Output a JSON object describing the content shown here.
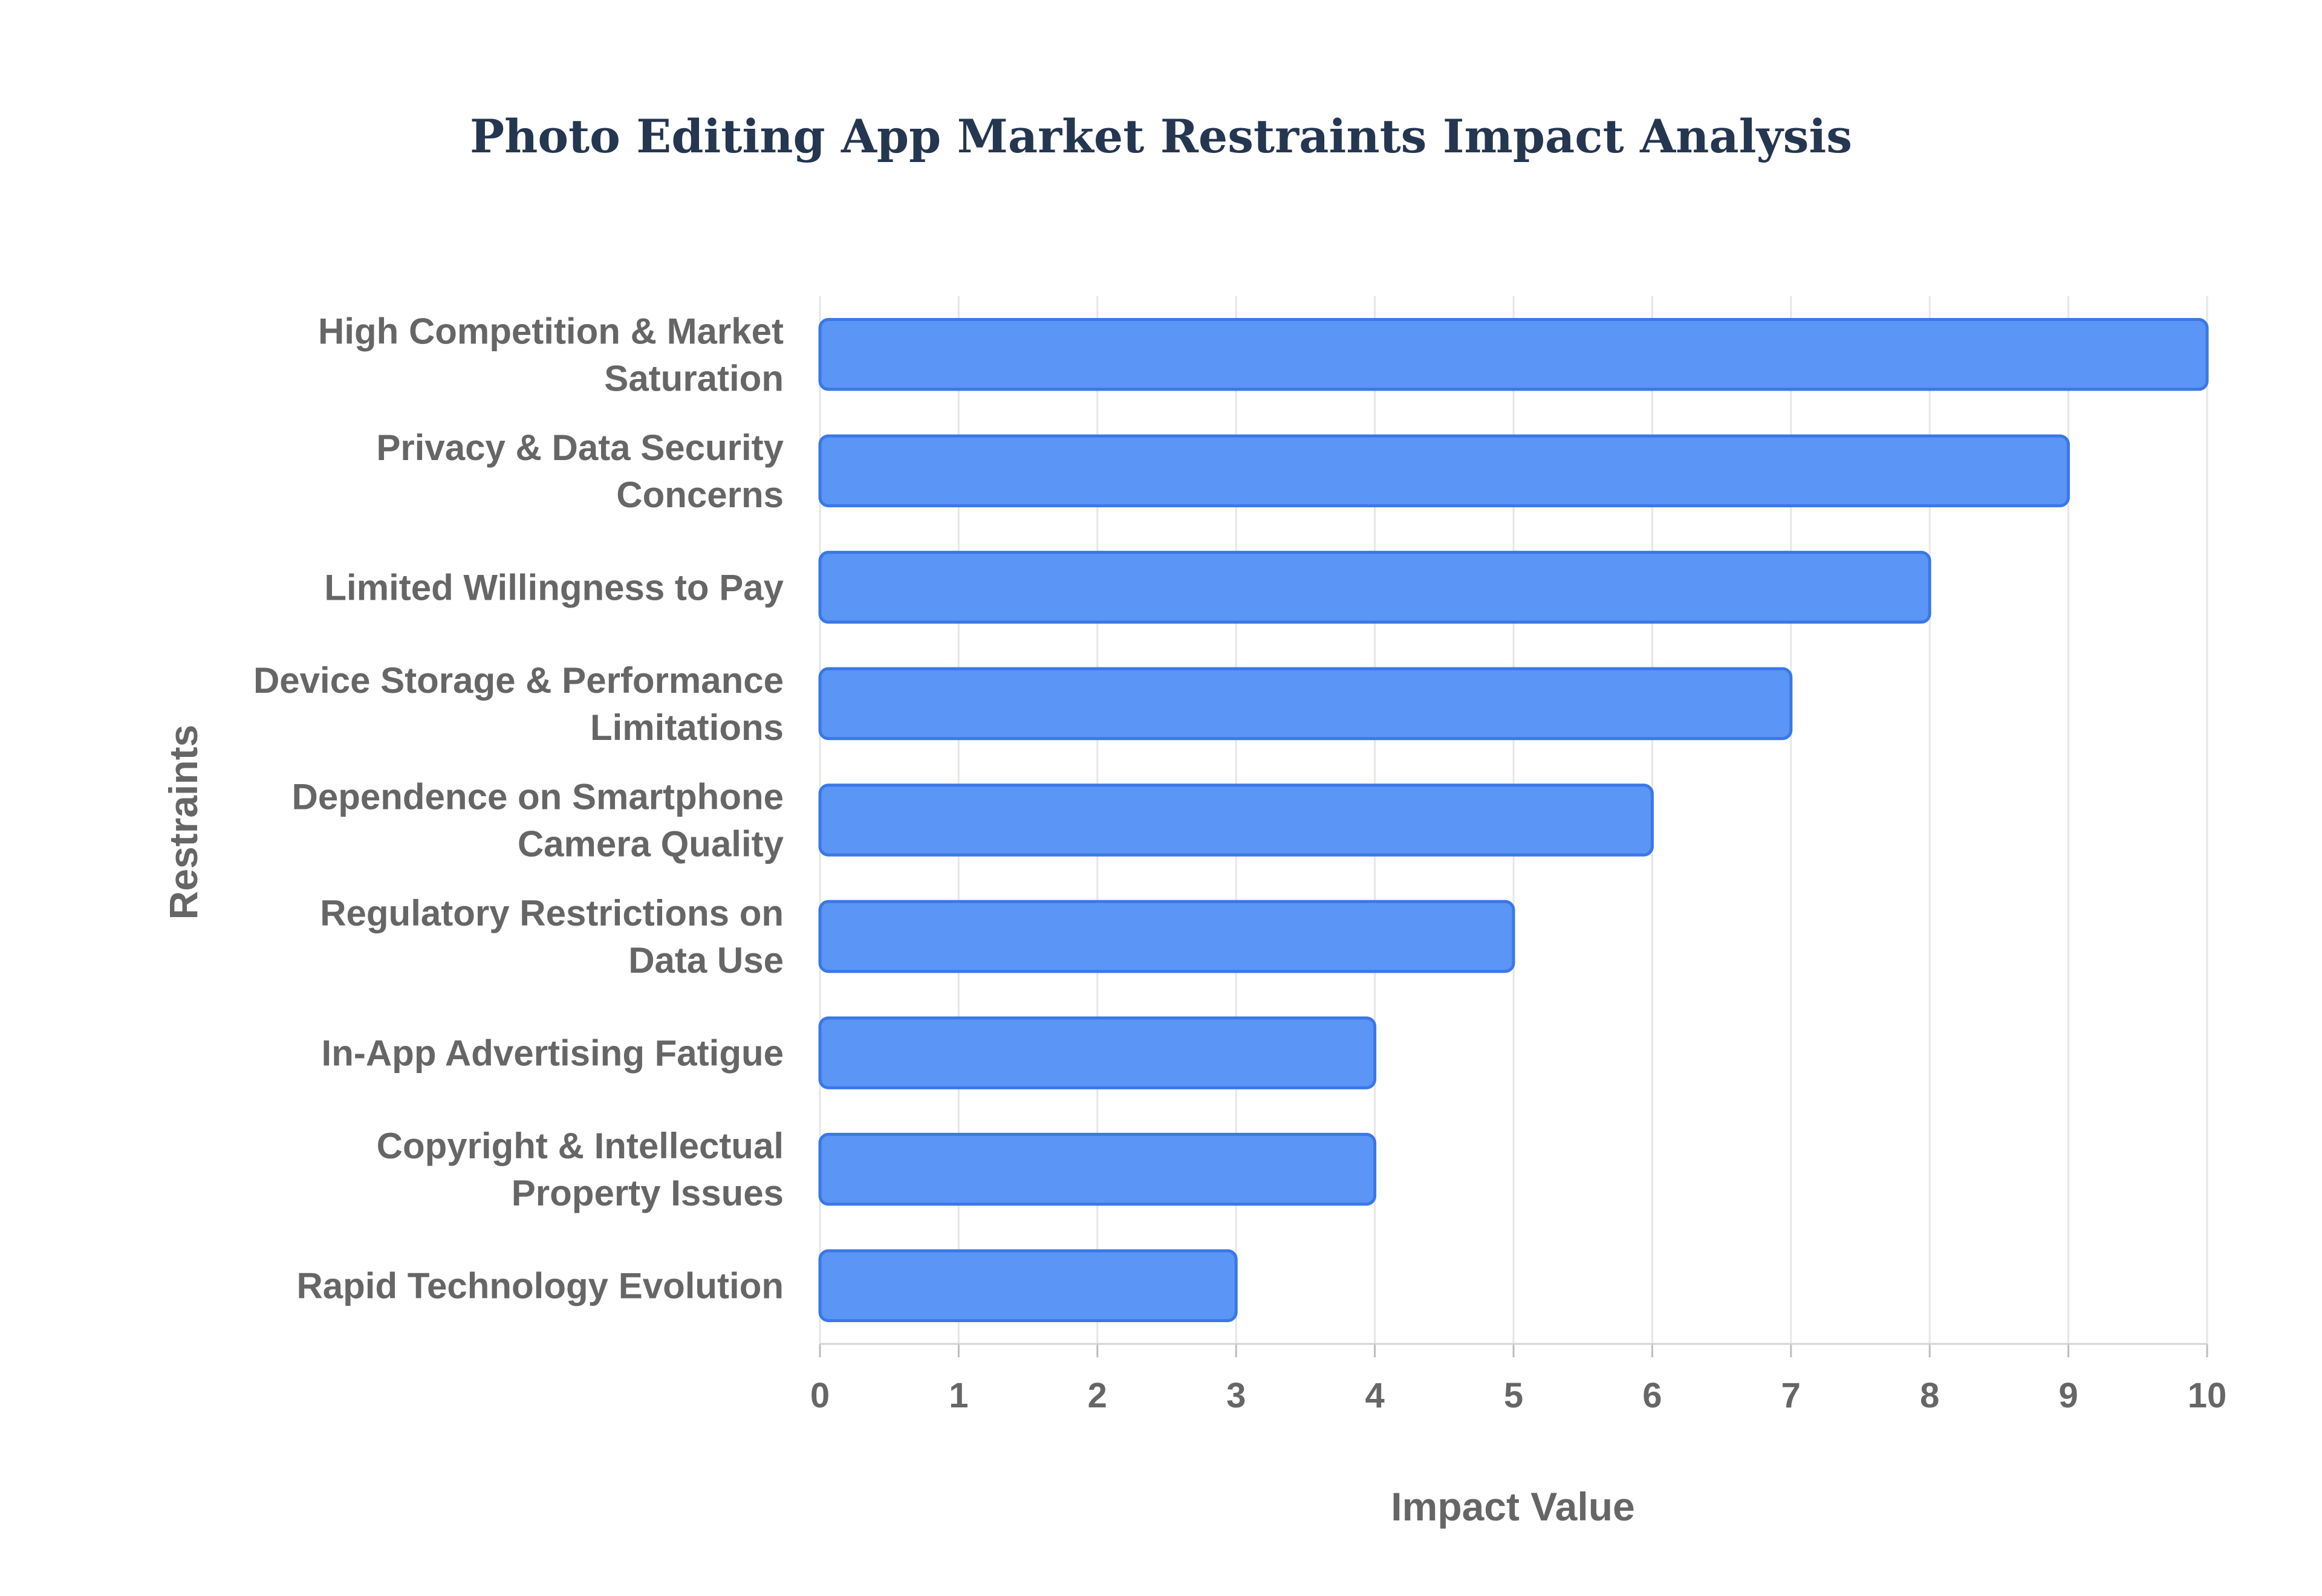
{
  "chart_data": {
    "type": "bar",
    "orientation": "horizontal",
    "title": "Photo Editing App Market Restraints Impact Analysis",
    "xlabel": "Impact Value",
    "ylabel": "Restraints",
    "xlim": [
      0,
      10
    ],
    "xticks": [
      0,
      1,
      2,
      3,
      4,
      5,
      6,
      7,
      8,
      9,
      10
    ],
    "grid": true,
    "legend": "none",
    "colors": {
      "bar_fill": "#5b95f5",
      "bar_stroke": "#3a78e6",
      "title": "#253650",
      "label": "#666666"
    },
    "categories": [
      [
        "High Competition & Market",
        "Saturation"
      ],
      [
        "Privacy & Data Security",
        "Concerns"
      ],
      [
        "Limited Willingness to Pay"
      ],
      [
        "Device Storage & Performance",
        "Limitations"
      ],
      [
        "Dependence on Smartphone",
        "Camera Quality"
      ],
      [
        "Regulatory Restrictions on",
        "Data Use"
      ],
      [
        "In-App Advertising Fatigue"
      ],
      [
        "Copyright & Intellectual",
        "Property Issues"
      ],
      [
        "Rapid Technology Evolution"
      ]
    ],
    "values": [
      10,
      9,
      8,
      7,
      6,
      5,
      4,
      4,
      3
    ]
  }
}
